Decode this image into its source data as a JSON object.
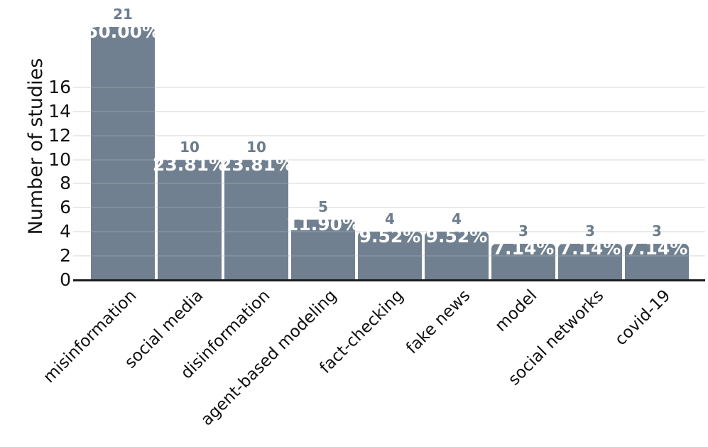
{
  "chart_data": {
    "type": "bar",
    "title": "",
    "xlabel": "",
    "ylabel": "Number of studies",
    "categories": [
      "misinformation",
      "social media",
      "disinformation",
      "agent-based modeling",
      "fact-checking",
      "fake news",
      "model",
      "social networks",
      "covid-19"
    ],
    "values": [
      21,
      10,
      10,
      5,
      4,
      4,
      3,
      3,
      3
    ],
    "percent_labels": [
      "50.00%",
      "23.81%",
      "23.81%",
      "11.90%",
      "9.52%",
      "9.52%",
      "7.14%",
      "7.14%",
      "7.14%"
    ],
    "yticks": [
      0,
      2,
      4,
      6,
      8,
      10,
      12,
      14,
      16
    ],
    "ylim": [
      0,
      23.3
    ],
    "grid": "horizontal-light",
    "legend": "none",
    "x_tick_rotation_deg": 45,
    "colors": {
      "bar": "#708090",
      "count_label": "#6b7c8d",
      "percent_label": "#ffffff",
      "axis_line": "#1c1c1c",
      "gridline": "#e7e7e7",
      "gridline_over_bar": "rgba(255,255,255,0.12)",
      "tick_text": "#111111"
    }
  }
}
